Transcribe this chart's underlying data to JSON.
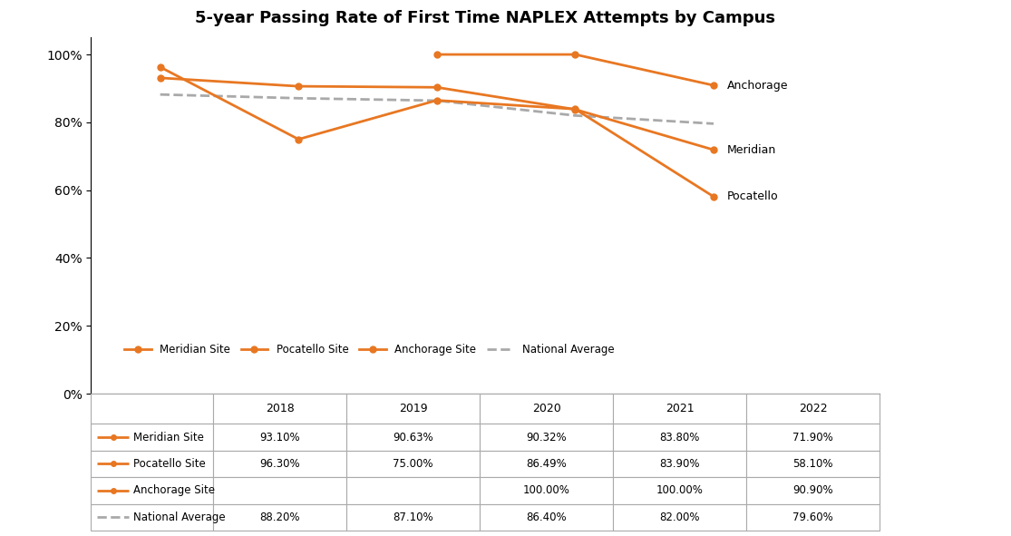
{
  "title": "5-year Passing Rate of First Time NAPLEX Attempts by Campus",
  "years": [
    2018,
    2019,
    2020,
    2021,
    2022
  ],
  "meridian": [
    0.931,
    0.9063,
    0.9032,
    0.838,
    0.719
  ],
  "pocatello": [
    0.963,
    0.75,
    0.8649,
    0.839,
    0.581
  ],
  "anchorage": [
    null,
    null,
    1.0,
    1.0,
    0.909
  ],
  "national_avg": [
    0.882,
    0.871,
    0.864,
    0.82,
    0.796
  ],
  "orange_color": "#E87722",
  "gray_color": "#A9A9A9",
  "line_width": 2.0,
  "marker": "o",
  "marker_size": 5,
  "label_anchorage": "Anchorage",
  "label_meridian": "Meridian",
  "label_pocatello": "Pocatello",
  "legend_meridian": "Meridian Site",
  "legend_pocatello": "Pocatello Site",
  "legend_anchorage": "Anchorage Site",
  "legend_national": "National Average",
  "ylim": [
    0.0,
    1.05
  ],
  "yticks": [
    0.0,
    0.2,
    0.4,
    0.6,
    0.8,
    1.0
  ],
  "xlim_left": 2017.5,
  "xlim_right": 2023.2,
  "table_col_labels": [
    "2018",
    "2019",
    "2020",
    "2021",
    "2022"
  ],
  "table_row_labels": [
    "Meridian Site",
    "Pocatello Site",
    "Anchorage Site",
    "National Average"
  ],
  "table_values": [
    [
      "93.10%",
      "90.63%",
      "90.32%",
      "83.80%",
      "71.90%"
    ],
    [
      "96.30%",
      "75.00%",
      "86.49%",
      "83.90%",
      "58.10%"
    ],
    [
      "",
      "",
      "100.00%",
      "100.00%",
      "90.90%"
    ],
    [
      "88.20%",
      "87.10%",
      "86.40%",
      "82.00%",
      "79.60%"
    ]
  ],
  "table_row_colors": [
    "#E87722",
    "#E87722",
    "#E87722",
    "#A9A9A9"
  ],
  "table_row_linestyles": [
    "-",
    "-",
    "-",
    "--"
  ]
}
